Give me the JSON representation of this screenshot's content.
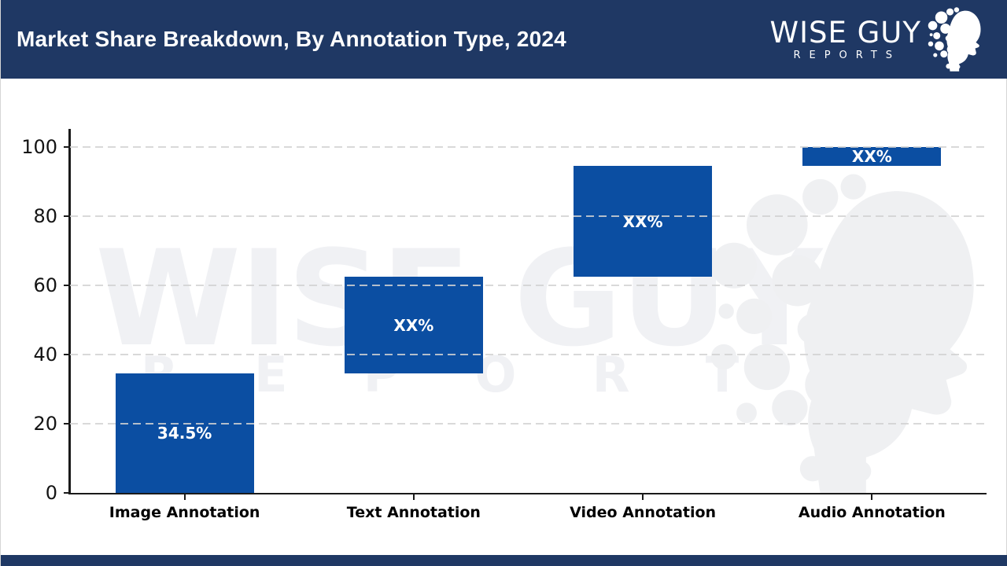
{
  "header": {
    "title": "Market Share Breakdown, By Annotation Type, 2024",
    "bg_color": "#1f3864",
    "logo": {
      "line1": "WISE GUY",
      "line2": "REPORTS"
    }
  },
  "watermark": {
    "line1": "WISE GUY",
    "line2": "REPORTS"
  },
  "chart_data": {
    "type": "bar",
    "subtype": "waterfall",
    "title": "Market Share Breakdown, By Annotation Type, 2024",
    "categories": [
      "Image Annotation",
      "Text Annotation",
      "Video Annotation",
      "Audio Annotation"
    ],
    "segments": [
      {
        "category": "Image Annotation",
        "start": 0,
        "end": 34.5,
        "label": "34.5%"
      },
      {
        "category": "Text Annotation",
        "start": 34.5,
        "end": 62.5,
        "label": "XX%"
      },
      {
        "category": "Video Annotation",
        "start": 62.5,
        "end": 94.5,
        "label": "XX%"
      },
      {
        "category": "Audio Annotation",
        "start": 94.5,
        "end": 100,
        "label": "XX%"
      }
    ],
    "yticks": [
      0,
      20,
      40,
      60,
      80,
      100
    ],
    "ylim": [
      0,
      105
    ],
    "xlabel": "",
    "ylabel": "",
    "grid": true,
    "gridline_style": "dashed",
    "legend": null,
    "bar_color": "#0b4ea2",
    "bar_label_color": "#ffffff",
    "axis_color": "#1a1a1a",
    "gridline_color": "#d2d2d2"
  },
  "footer": {
    "bg_color": "#1f3864"
  }
}
